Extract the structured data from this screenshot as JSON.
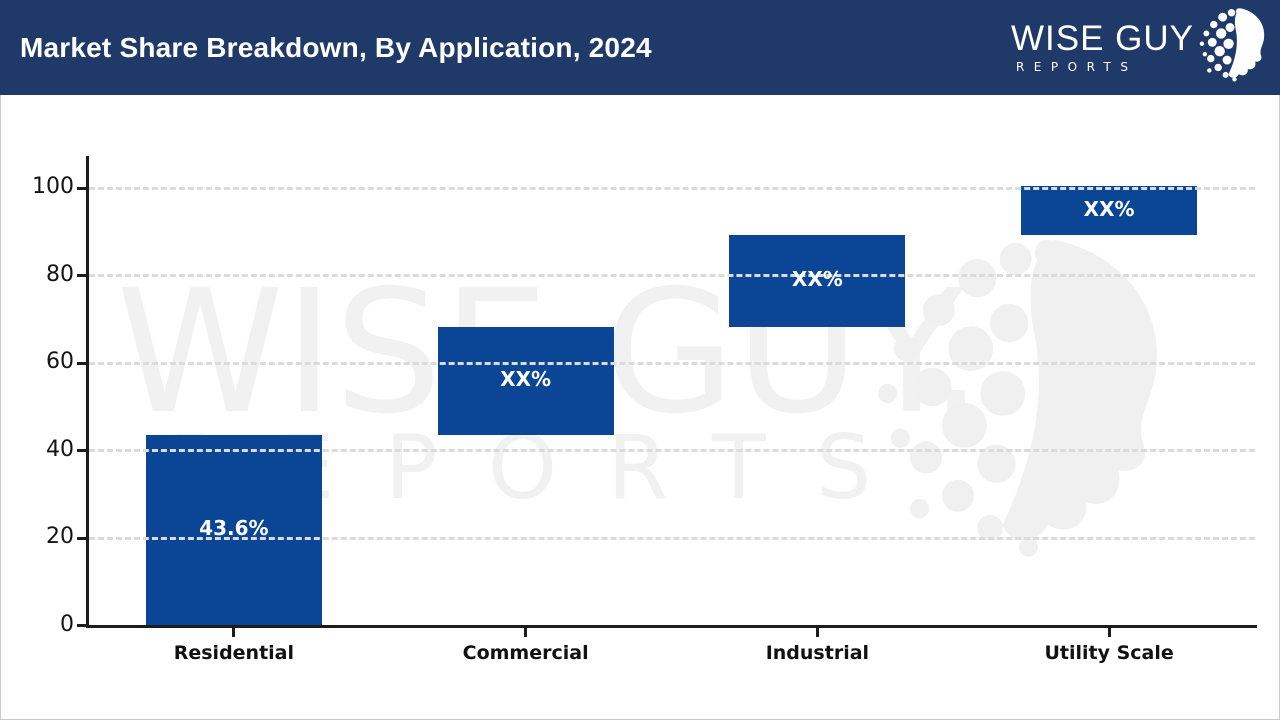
{
  "header": {
    "title": "Market Share Breakdown, By Application, 2024",
    "logo_line1": "WISE GUY",
    "logo_line2": "REPORTS"
  },
  "watermark": {
    "line1": "WISE GUY.",
    "line2": "REPORTS"
  },
  "colors": {
    "header_bg": "#1F3A68",
    "bar": "#0B4595",
    "gridline": "#DBDBDB",
    "axis": "#1C1C1C",
    "bar_label_text": "#FFFFFF",
    "watermark_gray": "#F1F1F1"
  },
  "chart_data": {
    "type": "bar",
    "subtype": "waterfall-floating-bars",
    "title": "Market Share Breakdown, By Application, 2024",
    "categories": [
      "Residential",
      "Commercial",
      "Industrial",
      "Utility Scale"
    ],
    "series": [
      {
        "name": "Market share (%)",
        "segments": [
          {
            "start": 0,
            "end": 43.6,
            "label": "43.6%"
          },
          {
            "start": 43.6,
            "end": 68.2,
            "label": "XX%"
          },
          {
            "start": 68.2,
            "end": 89.3,
            "label": "XX%"
          },
          {
            "start": 89.3,
            "end": 100.4,
            "label": "XX%"
          }
        ]
      }
    ],
    "xlabel": "",
    "ylabel": "",
    "yticks": [
      0,
      20,
      40,
      60,
      80,
      100
    ],
    "ylim": [
      0,
      105
    ],
    "grid": "horizontal-dashed",
    "legend": "none"
  }
}
